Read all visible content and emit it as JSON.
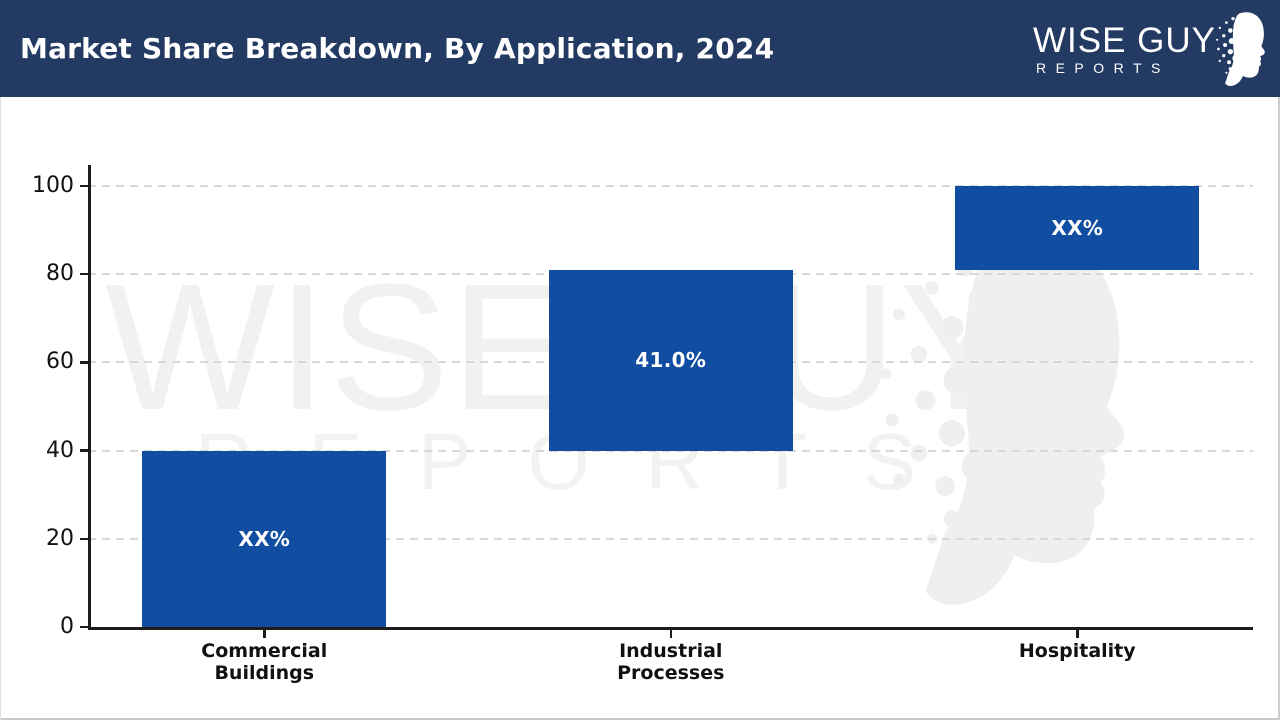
{
  "header": {
    "title": "Market Share Breakdown, By Application, 2024",
    "bg_color": "#233a63",
    "logo": {
      "line1": "WISE GUY",
      "line2": "REPORTS"
    }
  },
  "watermark": {
    "line1": "WISE GUY",
    "line2": "REPORTS"
  },
  "chart_data": {
    "type": "waterfall",
    "title": "Market Share Breakdown, By Application, 2024",
    "categories": [
      [
        "Commercial",
        "Buildings"
      ],
      [
        "Industrial",
        "Processes"
      ],
      [
        "Hospitality"
      ]
    ],
    "bars": [
      {
        "category": "Commercial Buildings",
        "base": 0,
        "value": 40,
        "top": 40,
        "label": "XX%"
      },
      {
        "category": "Industrial Processes",
        "base": 40,
        "value": 41,
        "top": 81,
        "label": "41.0%"
      },
      {
        "category": "Hospitality",
        "base": 81,
        "value": 19,
        "top": 100,
        "label": "XX%"
      }
    ],
    "xlabel": "",
    "ylabel": "",
    "ylim": [
      0,
      100
    ],
    "yticks": [
      0,
      20,
      40,
      60,
      80,
      100
    ],
    "grid": true,
    "grid_style": "dashed-horizontal",
    "legend": "none",
    "bar_color": "#09479e",
    "bar_label_color": "#ffffff",
    "axis_color": "#1c1c1c",
    "gridline_color": "#d8d8d8"
  }
}
